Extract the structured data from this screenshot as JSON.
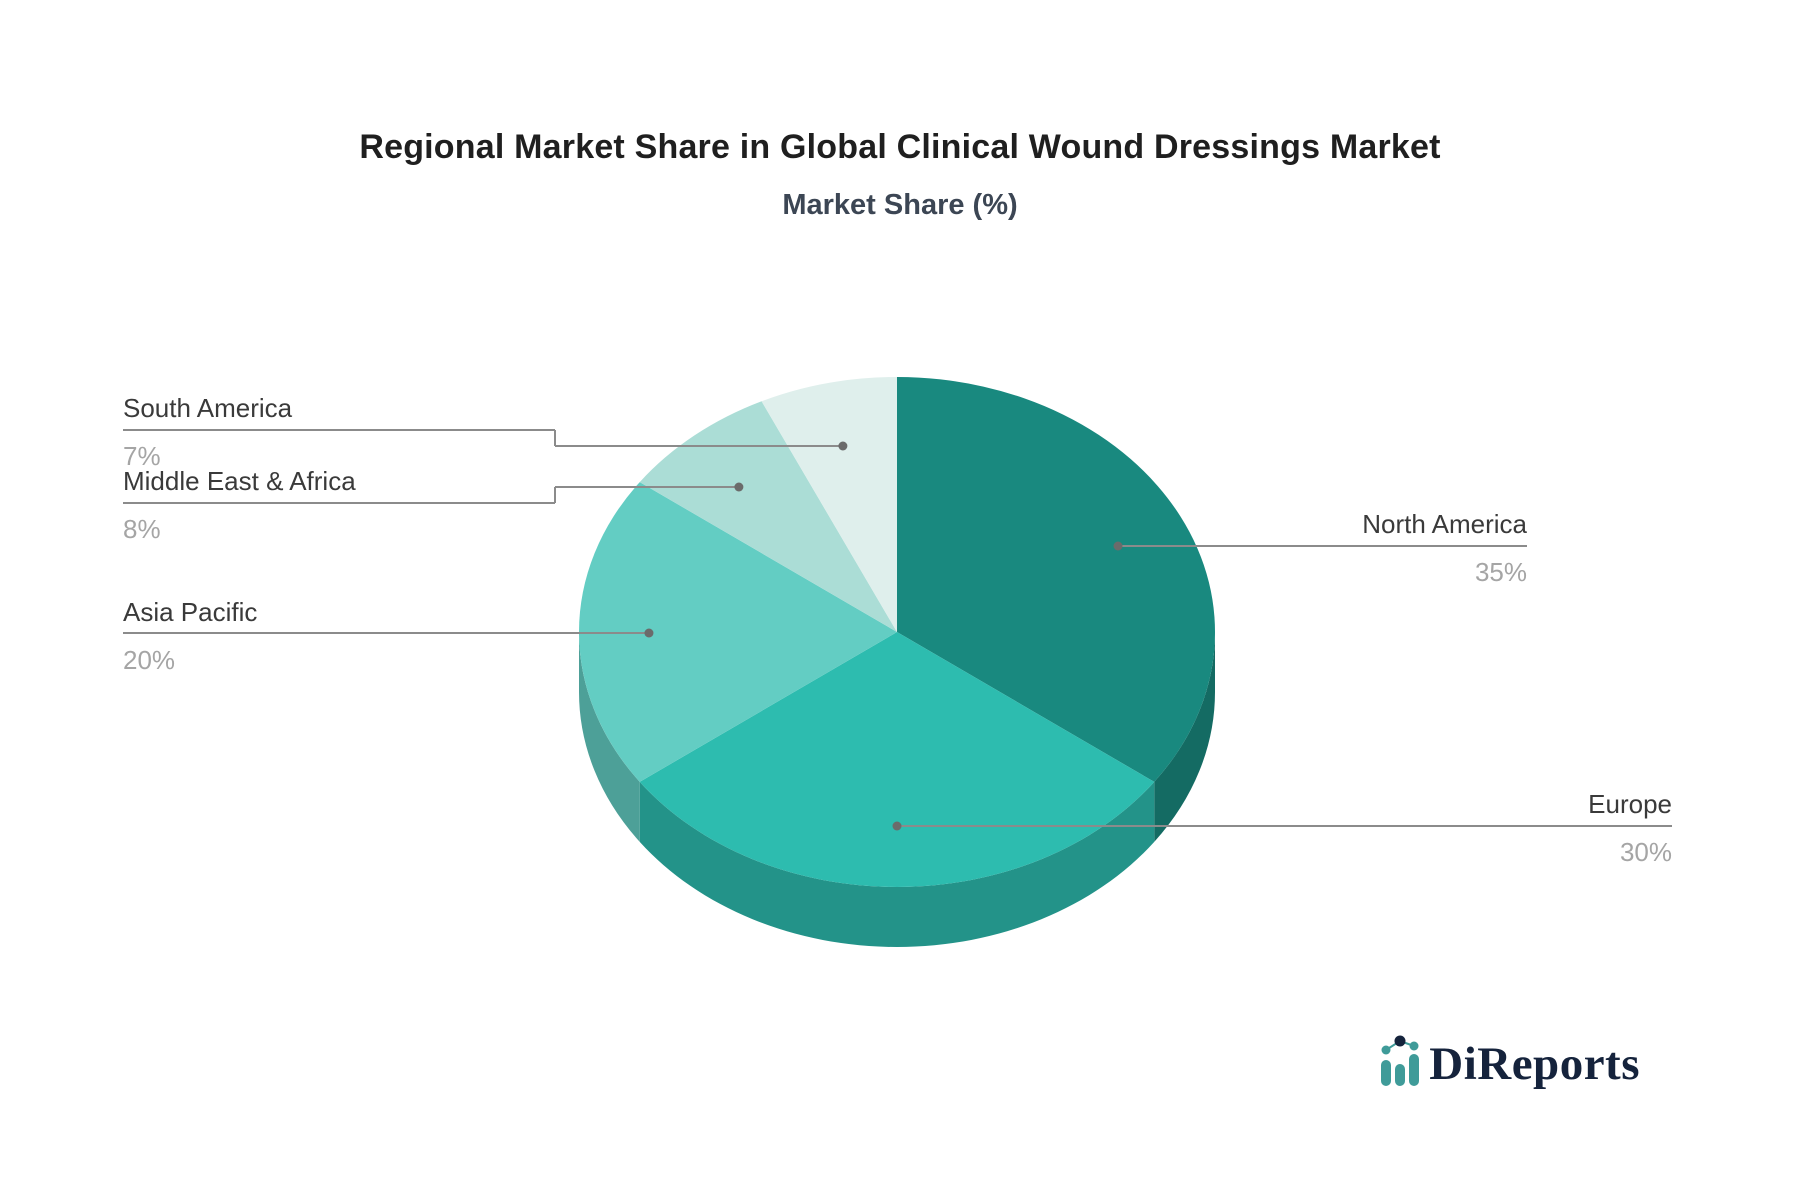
{
  "title": "Regional Market Share in Global Clinical Wound Dressings Market",
  "subtitle": "Market Share (%)",
  "chart_data": {
    "type": "pie",
    "style": "3d-pie",
    "title": "Regional Market Share in Global Clinical Wound Dressings Market",
    "subtitle": "Market Share (%)",
    "unit": "%",
    "start_angle": "12 o'clock, clockwise",
    "legend_position": "callout-labels",
    "grid": false,
    "categories": [
      "North America",
      "Europe",
      "Asia Pacific",
      "Middle East & Africa",
      "South America"
    ],
    "values": [
      35,
      30,
      20,
      8,
      7
    ],
    "slices": [
      {
        "name": "North America",
        "value": 35,
        "pct_label": "35%",
        "color": "#19897F",
        "callout_side": "right"
      },
      {
        "name": "Europe",
        "value": 30,
        "pct_label": "30%",
        "color": "#2DBCAF",
        "callout_side": "right"
      },
      {
        "name": "Asia Pacific",
        "value": 20,
        "pct_label": "20%",
        "color": "#63CDC3",
        "callout_side": "left"
      },
      {
        "name": "Middle East & Africa",
        "value": 8,
        "pct_label": "8%",
        "color": "#ABDDD6",
        "callout_side": "left"
      },
      {
        "name": "South America",
        "value": 7,
        "pct_label": "7%",
        "color": "#DFEFEC",
        "callout_side": "left"
      }
    ]
  },
  "logo": {
    "text": "DiReports"
  },
  "colors": {
    "background": "#FFFFFF",
    "title_text": "#1F1F1F",
    "subtitle_text": "#3C4654",
    "label_text": "#3A3A3A",
    "pct_text": "#A5A5A5",
    "leader_line": "#8B8B8B",
    "leader_dot": "#6B6B6B",
    "logo_text": "#15233C",
    "logo_teal": "#3F9B99"
  }
}
